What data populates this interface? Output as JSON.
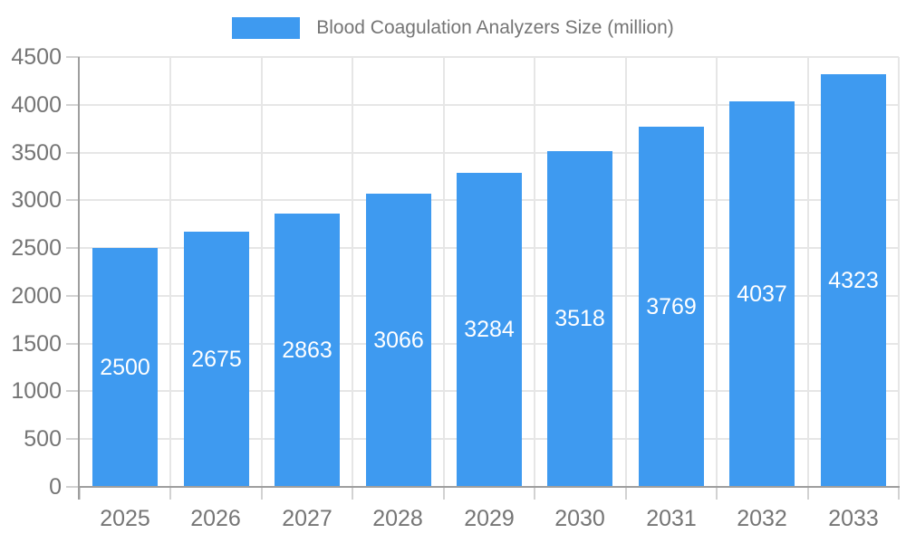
{
  "chart_data": {
    "type": "bar",
    "title": "Blood Coagulation Analyzers Size (million)",
    "categories": [
      "2025",
      "2026",
      "2027",
      "2028",
      "2029",
      "2030",
      "2031",
      "2032",
      "2033"
    ],
    "values": [
      2500,
      2675,
      2863,
      3066,
      3284,
      3518,
      3769,
      4037,
      4323
    ],
    "xlabel": "",
    "ylabel": "",
    "ylim": [
      0,
      4500
    ],
    "yticks": [
      0,
      500,
      1000,
      1500,
      2000,
      2500,
      3000,
      3500,
      4000,
      4500
    ],
    "grid": true,
    "legend_position": "top",
    "colors": {
      "bar": "#3E9AF0",
      "axis_line": "#9e9e9e",
      "tick": "#d2d2d2",
      "gridline": "#e6e6e6",
      "axis_text": "#757575",
      "bar_label_text": "#ffffff",
      "background": "#ffffff"
    }
  }
}
